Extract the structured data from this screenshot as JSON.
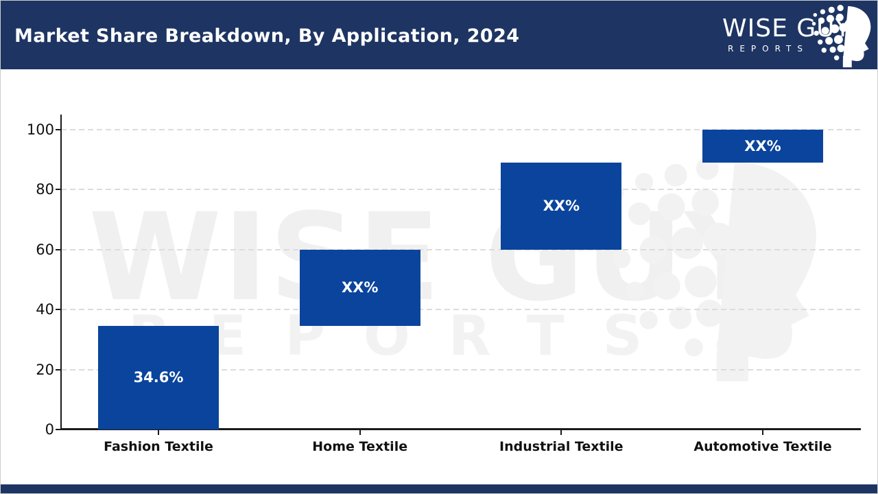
{
  "header": {
    "title": "Market Share Breakdown, By Application, 2024",
    "logo": {
      "line1": "WISE GUY",
      "line2": "REPORTS"
    }
  },
  "watermark": {
    "line1": "WISE GUY",
    "line2": "REPORTS"
  },
  "footer": {},
  "chart_data": {
    "type": "bar",
    "variant": "waterfall-floating-segments",
    "title": "Market Share Breakdown, By Application, 2024",
    "categories": [
      "Fashion Textile",
      "Home Textile",
      "Industrial Textile",
      "Automotive Textile"
    ],
    "segments": [
      {
        "category": "Fashion Textile",
        "start": 0,
        "end": 34.6,
        "label": "34.6%"
      },
      {
        "category": "Home Textile",
        "start": 34.6,
        "end": 60,
        "label": "XX%"
      },
      {
        "category": "Industrial Textile",
        "start": 60,
        "end": 89,
        "label": "XX%"
      },
      {
        "category": "Automotive Textile",
        "start": 89,
        "end": 100,
        "label": "XX%"
      }
    ],
    "yticks": [
      0,
      20,
      40,
      60,
      80,
      100
    ],
    "ylim": [
      0,
      105
    ],
    "xlabel": "",
    "ylabel": "",
    "grid": "horizontal-dashed",
    "legend": "none",
    "bar_color": "#0a449c",
    "label_color": "#ffffff",
    "axis_color": "#1a1a1a",
    "grid_color": "#dcdcdc"
  }
}
